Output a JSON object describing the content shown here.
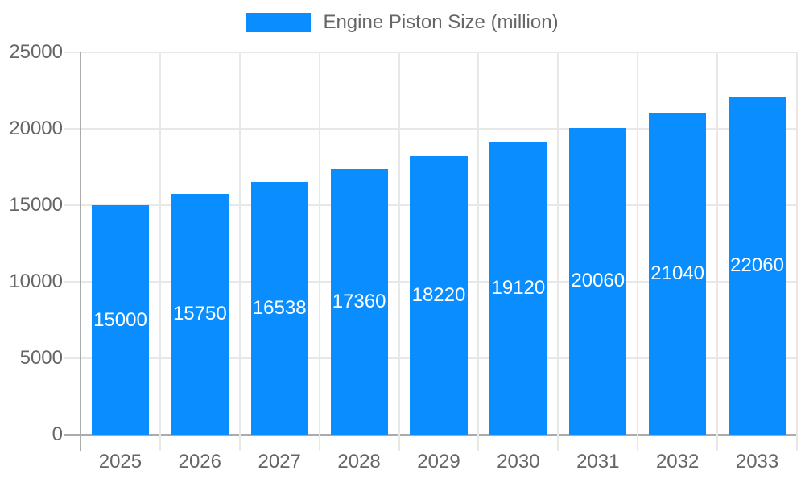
{
  "chart_data": {
    "type": "bar",
    "legend_label": "Engine Piston Size (million)",
    "legend_position": "top",
    "categories": [
      "2025",
      "2026",
      "2027",
      "2028",
      "2029",
      "2030",
      "2031",
      "2032",
      "2033"
    ],
    "series": [
      {
        "name": "Engine Piston Size (million)",
        "values": [
          15000,
          15750,
          16538,
          17360,
          18220,
          19120,
          20060,
          21040,
          22060
        ]
      }
    ],
    "yticks": [
      0,
      5000,
      10000,
      15000,
      20000,
      25000
    ],
    "ylim": [
      0,
      25000
    ],
    "xlabel": "",
    "ylabel": "",
    "grid": true,
    "bar_labels_inside": true,
    "colors": {
      "bar": "#0a8eff",
      "bar_label": "#ffffff",
      "axis_text": "#666666",
      "gridline": "#e8e8e8",
      "axis_line": "#ababab",
      "background": "#ffffff"
    }
  }
}
